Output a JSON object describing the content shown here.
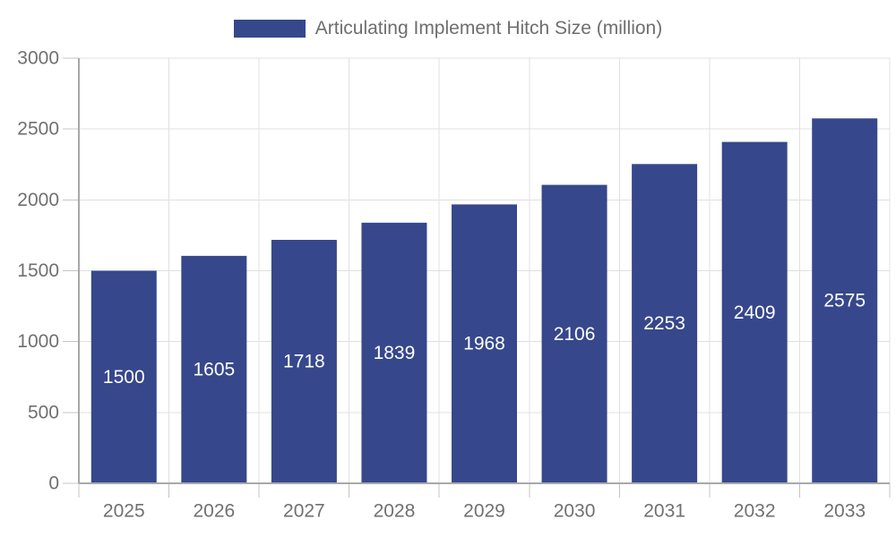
{
  "chart_data": {
    "type": "bar",
    "title": "Articulating Implement Hitch Size (million)",
    "legend": "Articulating Implement Hitch Size (million)",
    "legend_position": "top",
    "categories": [
      "2025",
      "2026",
      "2027",
      "2028",
      "2029",
      "2030",
      "2031",
      "2032",
      "2033"
    ],
    "values": [
      1500,
      1605,
      1718,
      1839,
      1968,
      2106,
      2253,
      2409,
      2575
    ],
    "xlabel": "",
    "ylabel": "",
    "ylim": [
      0,
      3000
    ],
    "yticks": [
      0,
      500,
      1000,
      1500,
      2000,
      2500,
      3000
    ],
    "grid": true,
    "value_labels": "inside-center"
  },
  "colors": {
    "bar": "#36478C",
    "bar_label": "#FFFFFF",
    "axis_line": "#A8A8A8",
    "grid_line": "#E0E0E0",
    "tick_mark": "#C4C4C4",
    "axis_text": "#707070",
    "legend_text": "#6E6E6E",
    "background": "#FFFFFF"
  }
}
